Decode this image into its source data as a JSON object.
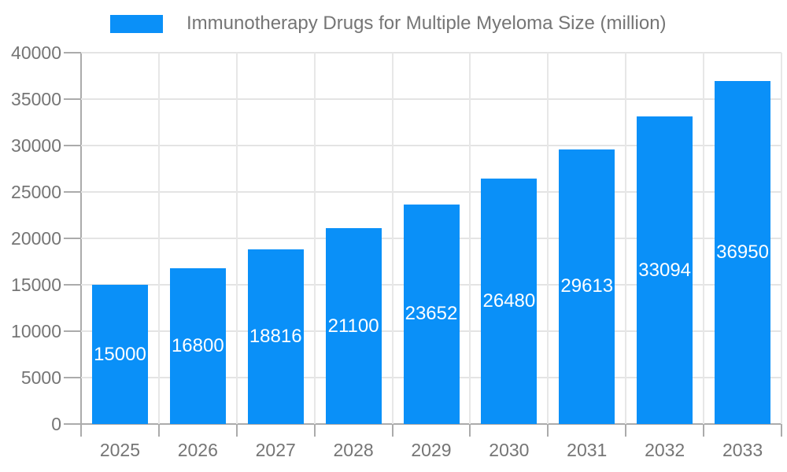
{
  "chart_data": {
    "type": "bar",
    "title": "Immunotherapy Drugs for Multiple Myeloma Size (million)",
    "legend": {
      "position": "top",
      "entries": [
        "Immunotherapy Drugs for Multiple Myeloma Size (million)"
      ]
    },
    "categories": [
      "2025",
      "2026",
      "2027",
      "2028",
      "2029",
      "2030",
      "2031",
      "2032",
      "2033"
    ],
    "values": [
      15000,
      16800,
      18816,
      21100,
      23652,
      26480,
      29613,
      33094,
      36950
    ],
    "value_labels": [
      "15000",
      "16800",
      "18816",
      "21100",
      "23652",
      "26480",
      "29613",
      "33094",
      "36950"
    ],
    "xlabel": "",
    "ylabel": "",
    "ylim": [
      0,
      40000
    ],
    "ytick_step": 5000,
    "yticks": [
      0,
      5000,
      10000,
      15000,
      20000,
      25000,
      30000,
      35000,
      40000
    ],
    "grid": true,
    "colors": {
      "bar": "#0A90F8",
      "bar_label_text": "#ffffff",
      "axis_text": "#757575",
      "axis_line": "#ABABAB",
      "gridline": "#E4E4E4"
    }
  }
}
